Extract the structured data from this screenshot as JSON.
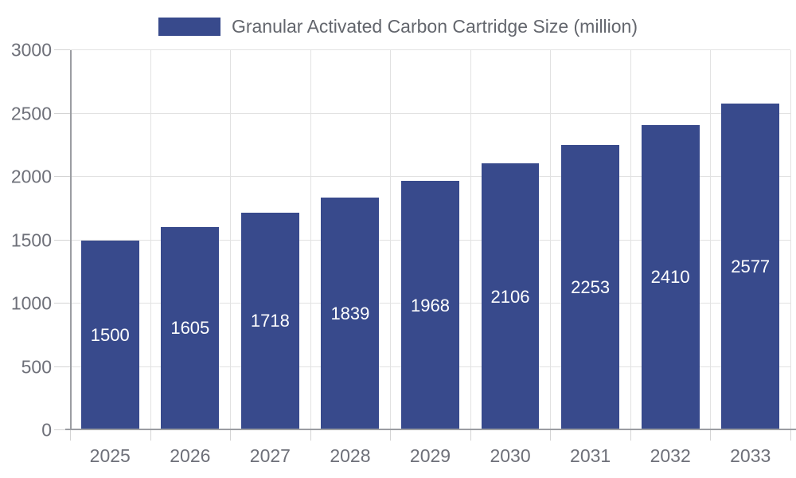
{
  "legend": {
    "label": "Granular Activated Carbon Cartridge Size (million)"
  },
  "chart_data": {
    "type": "bar",
    "title": "Granular Activated Carbon Cartridge Size (million)",
    "series_name": "Granular Activated Carbon Cartridge Size (million)",
    "categories": [
      "2025",
      "2026",
      "2027",
      "2028",
      "2029",
      "2030",
      "2031",
      "2032",
      "2033"
    ],
    "values": [
      1500,
      1605,
      1718,
      1839,
      1968,
      2106,
      2253,
      2410,
      2577
    ],
    "xlabel": "",
    "ylabel": "",
    "ylim": [
      0,
      3000
    ],
    "yticks": [
      0,
      500,
      1000,
      1500,
      2000,
      2500,
      3000
    ],
    "grid": true,
    "legend_position": "top",
    "value_labels": "inside-center"
  },
  "colors": {
    "bar": "#384a8c",
    "value_label": "#ffffff",
    "grid_line": "#e2e2e2",
    "axis_line": "#9b9da2",
    "axis_tick": "#d4d4d4",
    "tick_label": "#6e7079",
    "legend_text": "#63666d",
    "background": "#ffffff"
  }
}
